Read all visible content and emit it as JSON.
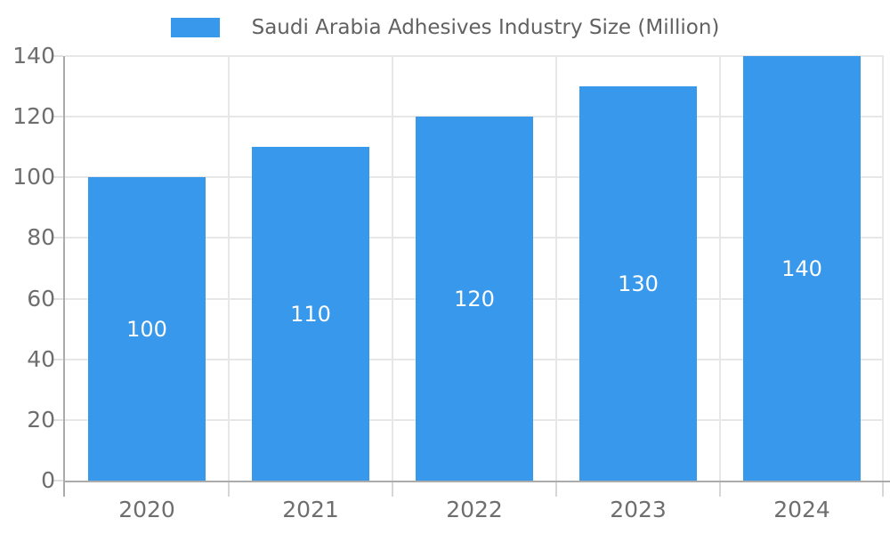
{
  "legend": {
    "label": "Saudi Arabia Adhesives Industry Size (Million)"
  },
  "colors": {
    "bar": "#3898EC",
    "bar_label": "#ffffff",
    "axis_label": "#6e6e6e",
    "legend_text": "#616161",
    "gridline": "#e7e7e7",
    "axis_line": "#ababab"
  },
  "chart_data": {
    "type": "bar",
    "title": "Saudi Arabia Adhesives Industry Size (Million)",
    "categories": [
      "2020",
      "2021",
      "2022",
      "2023",
      "2024"
    ],
    "values": [
      100,
      110,
      120,
      130,
      140
    ],
    "series": [
      {
        "name": "Saudi Arabia Adhesives Industry Size (Million)",
        "values": [
          100,
          110,
          120,
          130,
          140
        ],
        "color": "#3898EC"
      }
    ],
    "bar_value_labels": [
      "100",
      "110",
      "120",
      "130",
      "140"
    ],
    "xlabel": "",
    "ylabel": "",
    "ylim": [
      0,
      140
    ],
    "yticks": [
      0,
      20,
      40,
      60,
      80,
      100,
      120,
      140
    ],
    "grid": true,
    "legend_position": "top"
  }
}
